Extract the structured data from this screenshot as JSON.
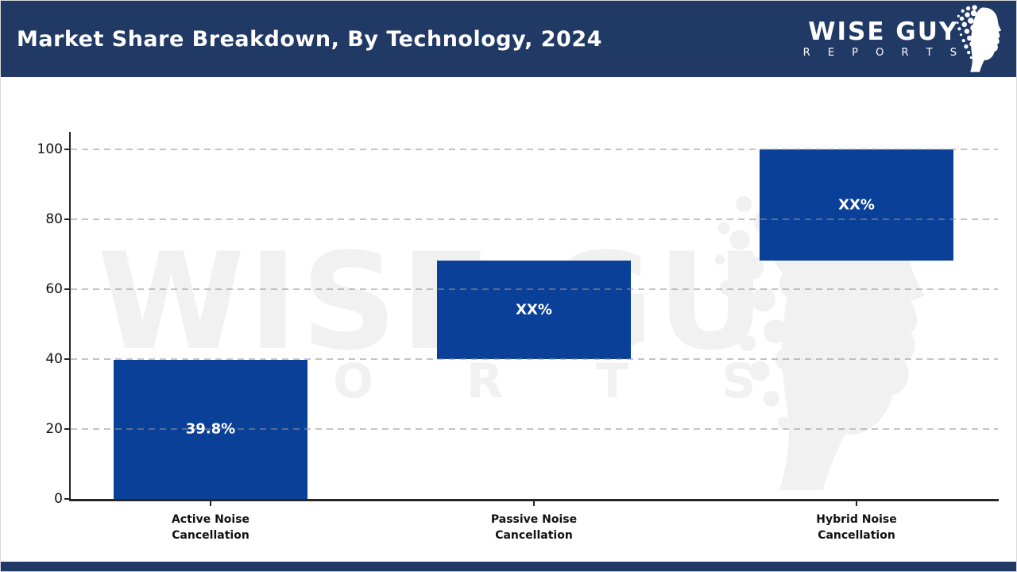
{
  "header": {
    "title": "Market Share Breakdown, By Technology, 2024",
    "logo": {
      "name": "WISE GUY",
      "subtitle": "R E P O R T S",
      "icon": "dot-face-profile-icon"
    }
  },
  "watermark": {
    "line1": "WISE GUY",
    "line2": "R O R T S"
  },
  "colors": {
    "header_bg": "#213965",
    "footer_bg": "#213965",
    "bar_blue": "#0a4097",
    "axis": "#262626",
    "gridline": "#c8c8c8",
    "tick_text": "#111111",
    "bar_label_text": "#ffffff",
    "watermark": "#f1f1f1"
  },
  "chart_data": {
    "type": "bar",
    "subtype": "floating-segment-waterfall",
    "title": "Market Share Breakdown, By Technology, 2024",
    "categories": [
      "Active Noise\nCancellation",
      "Passive Noise\nCancellation",
      "Hybrid Noise\nCancellation"
    ],
    "segments": [
      {
        "category": "Active Noise Cancellation",
        "start": 0,
        "end": 39.8,
        "label": "39.8%"
      },
      {
        "category": "Passive Noise Cancellation",
        "start": 40,
        "end": 68,
        "label": "XX%"
      },
      {
        "category": "Hybrid Noise Cancellation",
        "start": 68,
        "end": 100,
        "label": "XX%"
      }
    ],
    "ylabel": "",
    "xlabel": "",
    "yticks": [
      0,
      20,
      40,
      60,
      80,
      100
    ],
    "ylim": [
      0,
      105
    ],
    "grid": "horizontal-dashed",
    "legend": "none"
  }
}
